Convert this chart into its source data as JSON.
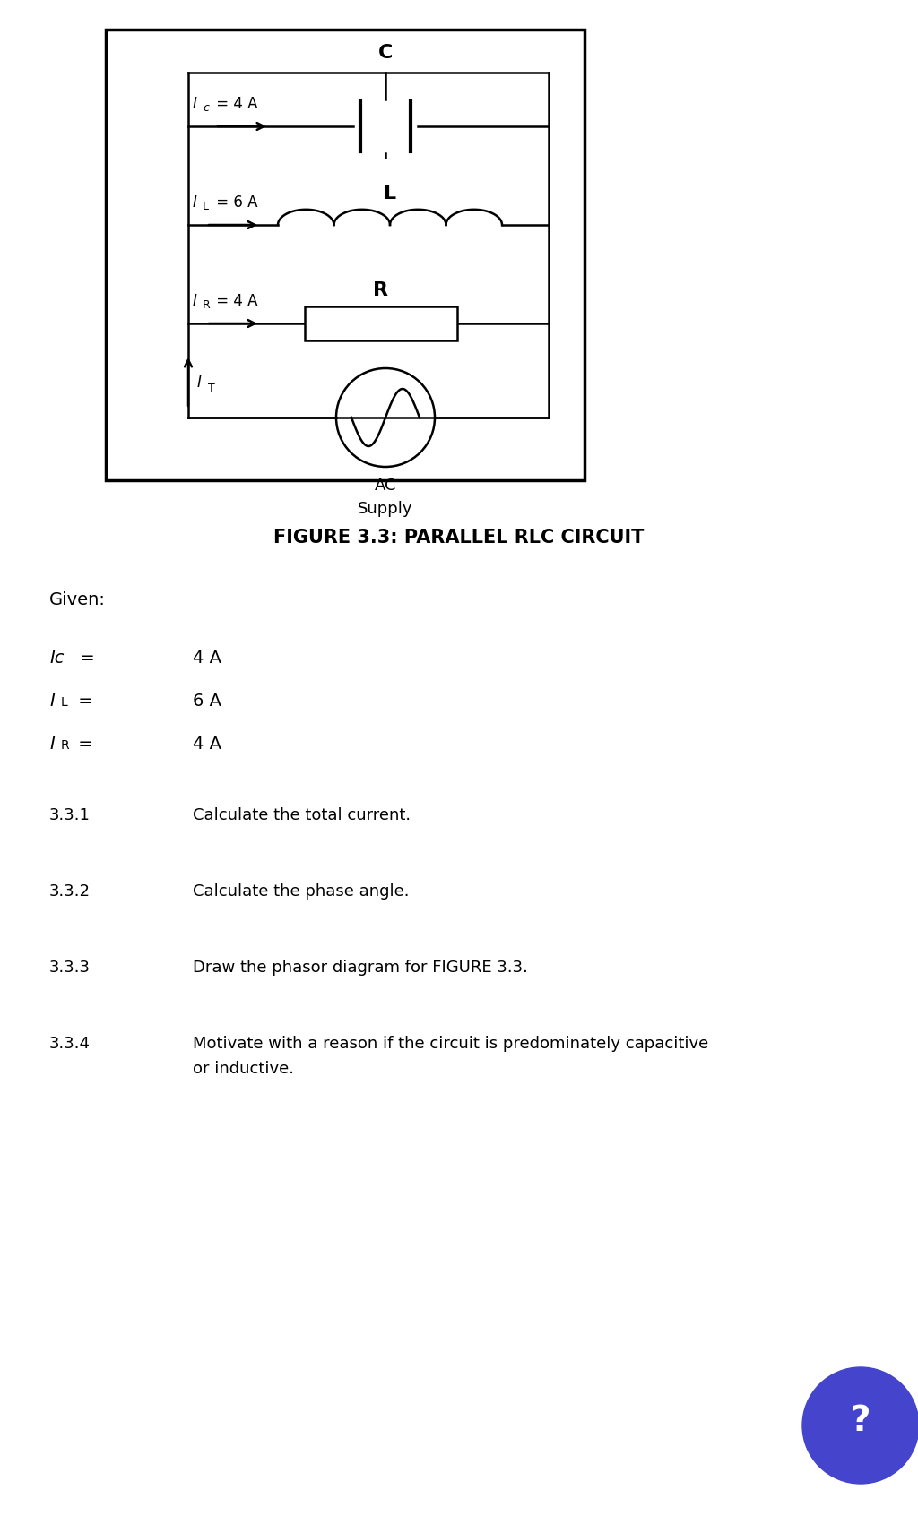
{
  "figure_title": "FIGURE 3.3: PARALLEL RLC CIRCUIT",
  "given_label": "Given:",
  "Ic_sym": "Ic =",
  "IL_sym": "IL =",
  "IR_sym": "IR =",
  "Ic_val": "4 A",
  "IL_val": "6 A",
  "IR_val": "4 A",
  "questions": [
    {
      "number": "3.3.1",
      "text": "Calculate the total current."
    },
    {
      "number": "3.3.2",
      "text": "Calculate the phase angle."
    },
    {
      "number": "3.3.3",
      "text": "Draw the phasor diagram for FIGURE 3.3."
    },
    {
      "number": "3.3.4",
      "text": "Motivate with a reason if the circuit is predominately capacitive\nor inductive."
    }
  ],
  "Ic_label": "Ic = 4 A",
  "IL_label": "IL = 6 A",
  "IR_label": "IR = 4 A",
  "IT_label": "IT",
  "C_label": "C",
  "L_label": "L",
  "R_label": "R",
  "source_label1": "AC",
  "source_label2": "Supply",
  "bg_color": "#ffffff",
  "line_color": "#000000",
  "blue_color": "#4444cc"
}
